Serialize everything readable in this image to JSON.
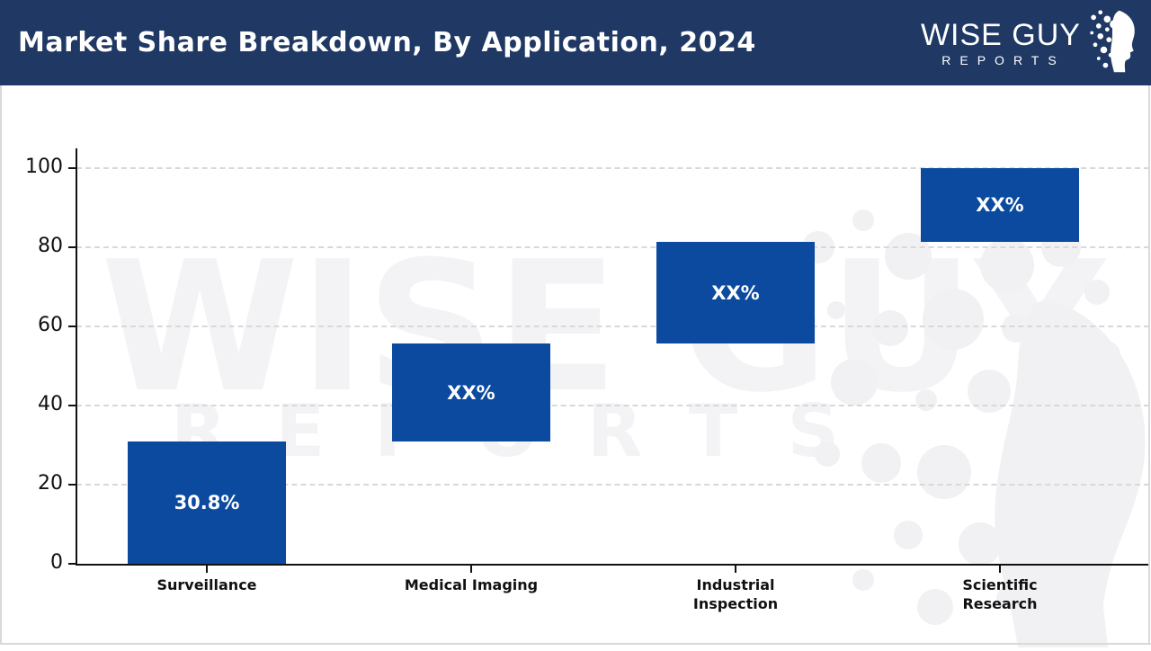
{
  "header": {
    "title": "Market Share Breakdown, By Application, 2024",
    "logo": {
      "line1": "WISE GUY",
      "line2": "REPORTS"
    }
  },
  "watermark": {
    "line1": "WISE GUY",
    "line2": "REPORTS"
  },
  "chart_data": {
    "type": "bar",
    "subtype": "waterfall",
    "title": "Market Share Breakdown, By Application, 2024",
    "categories": [
      "Surveillance",
      "Medical Imaging",
      "Industrial\nInspection",
      "Scientific\nResearch"
    ],
    "bars": [
      {
        "category": "Surveillance",
        "start": 0,
        "end": 30.8,
        "label": "30.8%"
      },
      {
        "category": "Medical Imaging",
        "start": 30.8,
        "end": 55.6,
        "label": "XX%"
      },
      {
        "category": "Industrial Inspection",
        "start": 55.6,
        "end": 81.3,
        "label": "XX%"
      },
      {
        "category": "Scientific Research",
        "start": 81.3,
        "end": 100,
        "label": "XX%"
      }
    ],
    "ylim": [
      0,
      100
    ],
    "yticks": [
      0,
      20,
      40,
      60,
      80,
      100
    ],
    "grid": "dashed-horizontal",
    "legend": "none",
    "colors": {
      "bar": "#0b4a9e",
      "bar_label": "#ffffff",
      "header_background": "#1f3864",
      "header_text": "#ffffff",
      "gridline": "#d8d8d8",
      "axis": "#111111",
      "watermark": "#f3f3f6"
    }
  }
}
